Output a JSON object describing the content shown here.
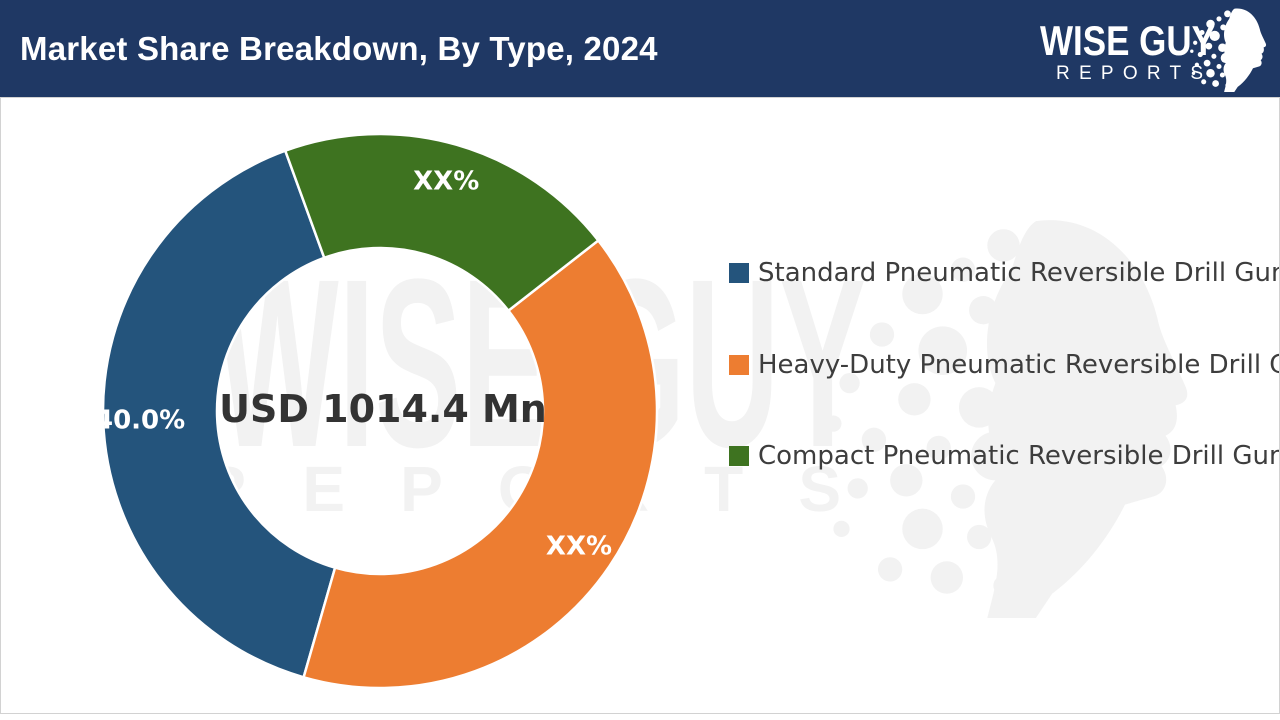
{
  "header": {
    "title": "Market Share Breakdown, By Type, 2024",
    "background_color": "#1f3864",
    "logo": {
      "brand_line1": "WISE GUY",
      "brand_line2": "REPORTS"
    }
  },
  "watermark": {
    "line1": "WISE GUY",
    "line2": "REPORTS"
  },
  "chart_data": {
    "type": "pie",
    "variant": "donut",
    "title": "Market Share Breakdown, By Type, 2024",
    "center_label": "USD 1014.4 Mn",
    "start_angle_deg": 110,
    "direction": "counterclockwise",
    "donut_hole_ratio": 0.59,
    "legend_position": "right",
    "segments": [
      {
        "label": "Standard Pneumatic Reversible Drill Gun",
        "value_pct": 40,
        "pct_label": "40.0%",
        "color": "#24547c"
      },
      {
        "label": "Heavy-Duty Pneumatic Reversible Drill Gun",
        "value_pct": 40,
        "pct_label": "XX%",
        "color": "#ed7d31"
      },
      {
        "label": "Compact Pneumatic Reversible Drill Gun",
        "value_pct": 20,
        "pct_label": "XX%",
        "color": "#3e7320"
      }
    ]
  }
}
